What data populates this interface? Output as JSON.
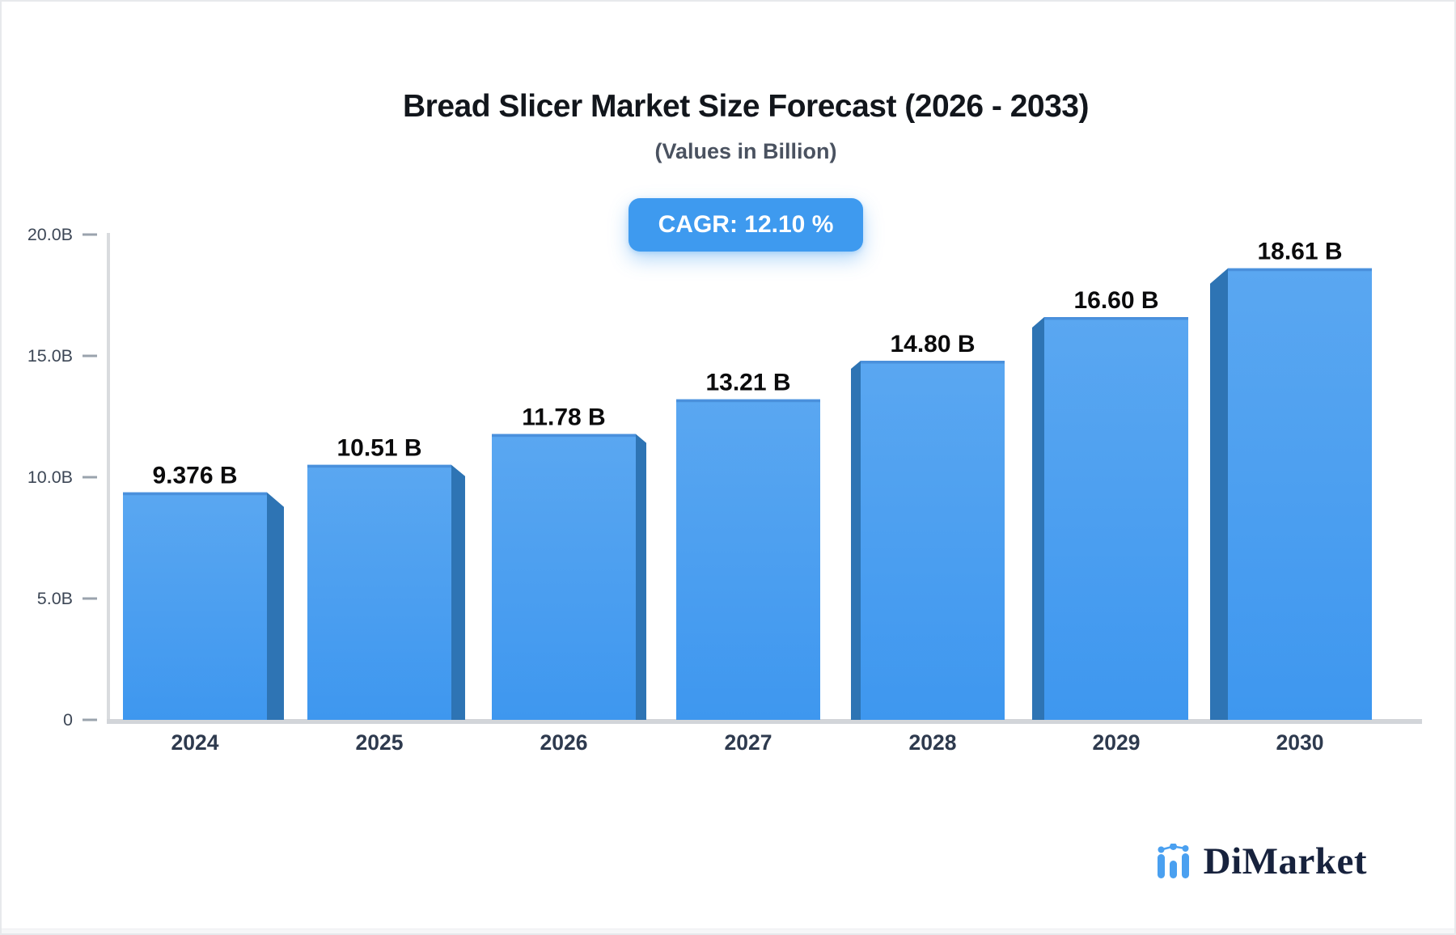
{
  "header": {
    "title": "Bread Slicer Market Size Forecast (2026 - 2033)",
    "subtitle": "(Values in Billion)",
    "cagr_badge": "CAGR: 12.10 %"
  },
  "chart_data": {
    "type": "bar",
    "title": "Bread Slicer Market Size Forecast (2026 - 2033)",
    "subtitle": "(Values in Billion)",
    "cagr_label": "CAGR: 12.10 %",
    "cagr_percent": 12.1,
    "categories": [
      "2024",
      "2025",
      "2026",
      "2027",
      "2028",
      "2029",
      "2030"
    ],
    "values": [
      9.376,
      10.51,
      11.78,
      13.21,
      14.8,
      16.6,
      18.61
    ],
    "value_labels": [
      "9.376 B",
      "10.51 B",
      "11.78 B",
      "13.21 B",
      "14.80 B",
      "16.60 B",
      "18.61 B"
    ],
    "unit": "Billion",
    "xlabel": "",
    "ylabel": "",
    "y_ticks": [
      "20.0B",
      "15.0B",
      "10.0B",
      "5.0B",
      "0"
    ],
    "y_tick_values": [
      20,
      15,
      10,
      5,
      0
    ],
    "ylim": [
      0,
      20
    ],
    "grid": false,
    "legend": false,
    "bar_style": "3d-perspective",
    "colors": {
      "bar_face_top": "#5aa7f1",
      "bar_face_bottom": "#3e97ef",
      "bar_side": "#2e74b4",
      "bar_top_edge": "#4a90dc",
      "axis_line": "#d9dbde",
      "baseline": "#d2d5d9",
      "tick_dash": "#9aa3ad",
      "tick_label": "#3d4756",
      "year_label": "#2e3a4e",
      "value_label": "#0b0b0c",
      "badge_bg": "#3e9aef",
      "title": "#12161c",
      "subtitle": "#4a5260"
    }
  },
  "branding": {
    "logo_text": "DiMarket",
    "logo_icon": "bar-chart-logo-icon",
    "logo_icon_color": "#4aa0f0",
    "logo_text_color": "#17223d"
  }
}
